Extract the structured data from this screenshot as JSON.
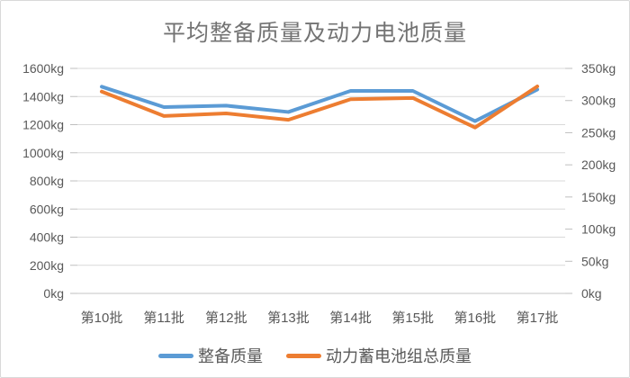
{
  "chart_title": "平均整备质量及动力电池质量",
  "chart_data": {
    "type": "line",
    "title": "平均整备质量及动力电池质量",
    "categories": [
      "第10批",
      "第11批",
      "第12批",
      "第13批",
      "第14批",
      "第15批",
      "第16批",
      "第17批"
    ],
    "series": [
      {
        "name": "整备质量",
        "axis": "left",
        "color": "#5B9BD5",
        "values": [
          1470,
          1325,
          1335,
          1290,
          1440,
          1440,
          1225,
          1450
        ]
      },
      {
        "name": "动力蓄电池组总质量",
        "axis": "right",
        "color": "#ED7D31",
        "values": [
          314,
          276,
          280,
          270,
          302,
          304,
          258,
          322
        ]
      }
    ],
    "left_axis": {
      "min": 0,
      "max": 1600,
      "step": 200,
      "unit": "kg",
      "tick_labels": [
        "1600kg",
        "1400kg",
        "1200kg",
        "1000kg",
        "800kg",
        "600kg",
        "400kg",
        "200kg",
        "0kg"
      ]
    },
    "right_axis": {
      "min": 0,
      "max": 350,
      "step": 50,
      "unit": "kg",
      "tick_labels": [
        "350kg",
        "300kg",
        "250kg",
        "200kg",
        "150kg",
        "100kg",
        "50kg",
        "0kg"
      ]
    },
    "grid": true,
    "legend_position": "bottom",
    "colors": {
      "grid": "#d9d9d9",
      "tick": "#bfbfbf",
      "axis_line": "#c6c6c6",
      "axis_text": "#595959",
      "title_text": "#737373"
    }
  }
}
